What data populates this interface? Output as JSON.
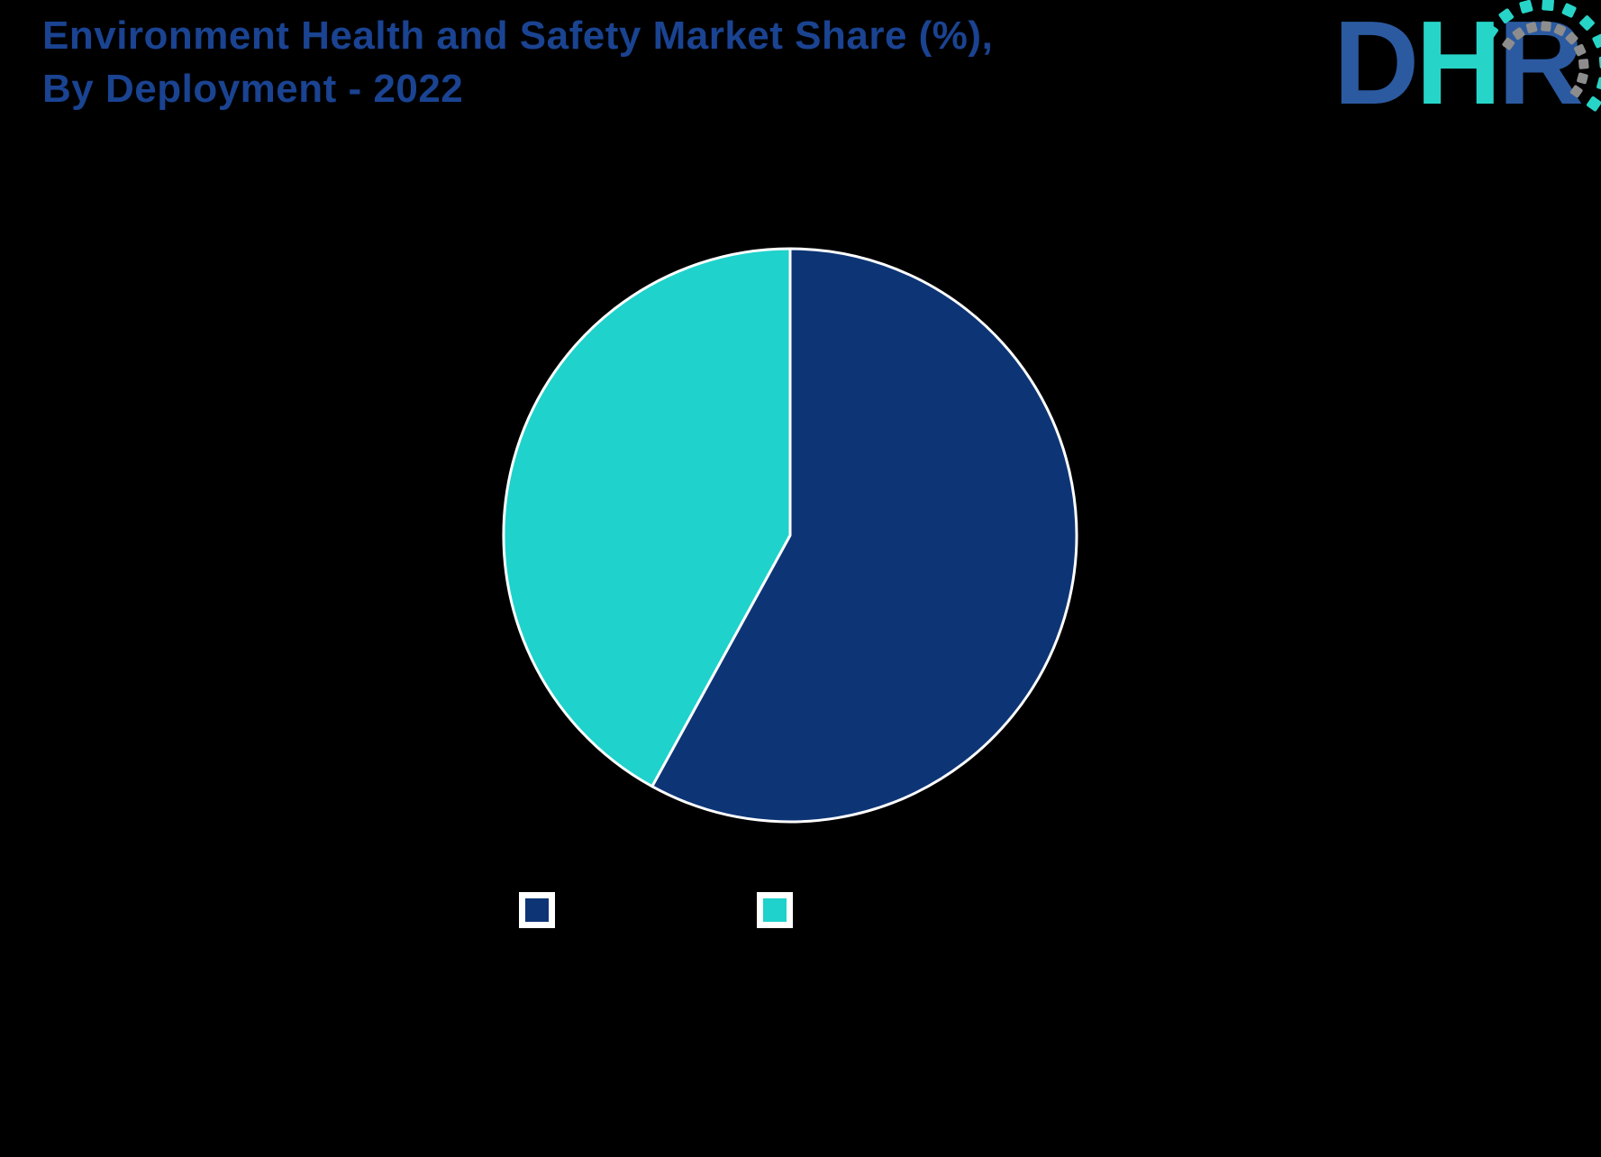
{
  "page": {
    "background": "#000000"
  },
  "header": {
    "title_line1": "Environment Health and Safety Market Share (%),",
    "title_line2": "By Deployment - 2022",
    "title_color": "#1a4391"
  },
  "logo": {
    "letters": [
      {
        "char": "D",
        "color": "#2b5aa0"
      },
      {
        "char": "H",
        "color": "#27d5c8"
      },
      {
        "char": "R",
        "color": "#2b5aa0"
      }
    ],
    "dot_colors": {
      "teal": "#27d5c8",
      "gray": "#8d8d8d"
    }
  },
  "chart_data": {
    "type": "pie",
    "title": "Environment Health and Safety Market Share (%), By Deployment - 2022",
    "series": [
      {
        "label": "",
        "value": 58,
        "color": "#0d3576"
      },
      {
        "label": "",
        "value": 42,
        "color": "#1fd2cc"
      }
    ],
    "start_angle_deg": 0,
    "direction": "clockwise",
    "slice_stroke_color": "#ffffff",
    "data_labels_visible": false,
    "legend_position": "bottom"
  },
  "legend": {
    "items": [
      {
        "label": "",
        "color": "#0d3576"
      },
      {
        "label": "",
        "color": "#1fd2cc"
      }
    ]
  }
}
